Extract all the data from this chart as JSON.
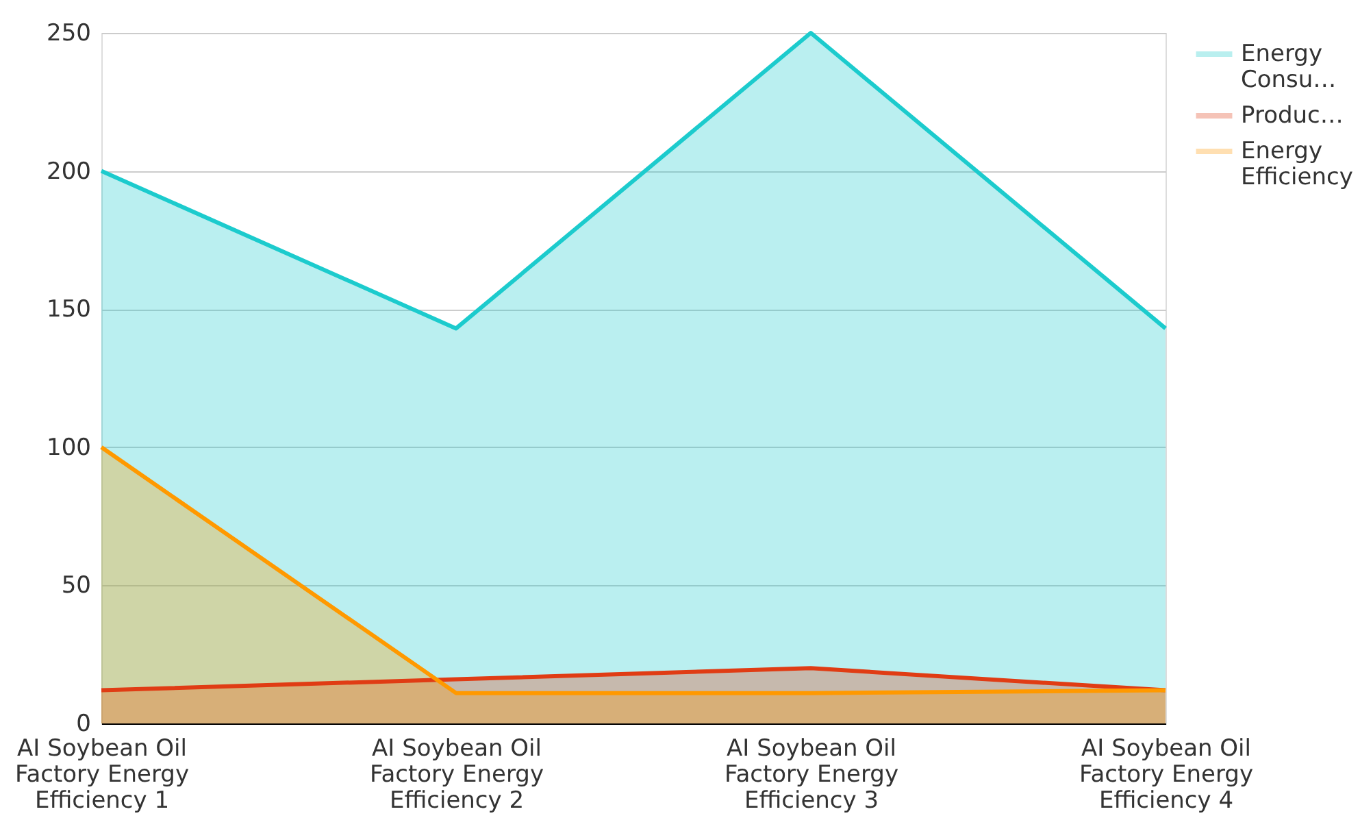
{
  "chart_data": {
    "type": "area",
    "categories": [
      "AI Soybean Oil Factory Energy Efficiency 1",
      "AI Soybean Oil Factory Energy Efficiency 2",
      "AI Soybean Oil Factory Energy Efficiency 3",
      "AI Soybean Oil Factory Energy Efficiency 4"
    ],
    "series": [
      {
        "name": "Energy Consu…",
        "color": "#1ccbcd",
        "values": [
          200,
          143,
          250,
          143
        ]
      },
      {
        "name": "Produc…",
        "color": "#e03c14",
        "values": [
          12,
          16,
          20,
          12
        ]
      },
      {
        "name": "Energy Efficiency",
        "color": "#ff9900",
        "values": [
          100,
          11,
          11,
          12
        ]
      }
    ],
    "ylim": [
      0,
      250
    ],
    "yticks": [
      0,
      50,
      100,
      150,
      200,
      250
    ],
    "grid": "y",
    "legend": "top right"
  }
}
